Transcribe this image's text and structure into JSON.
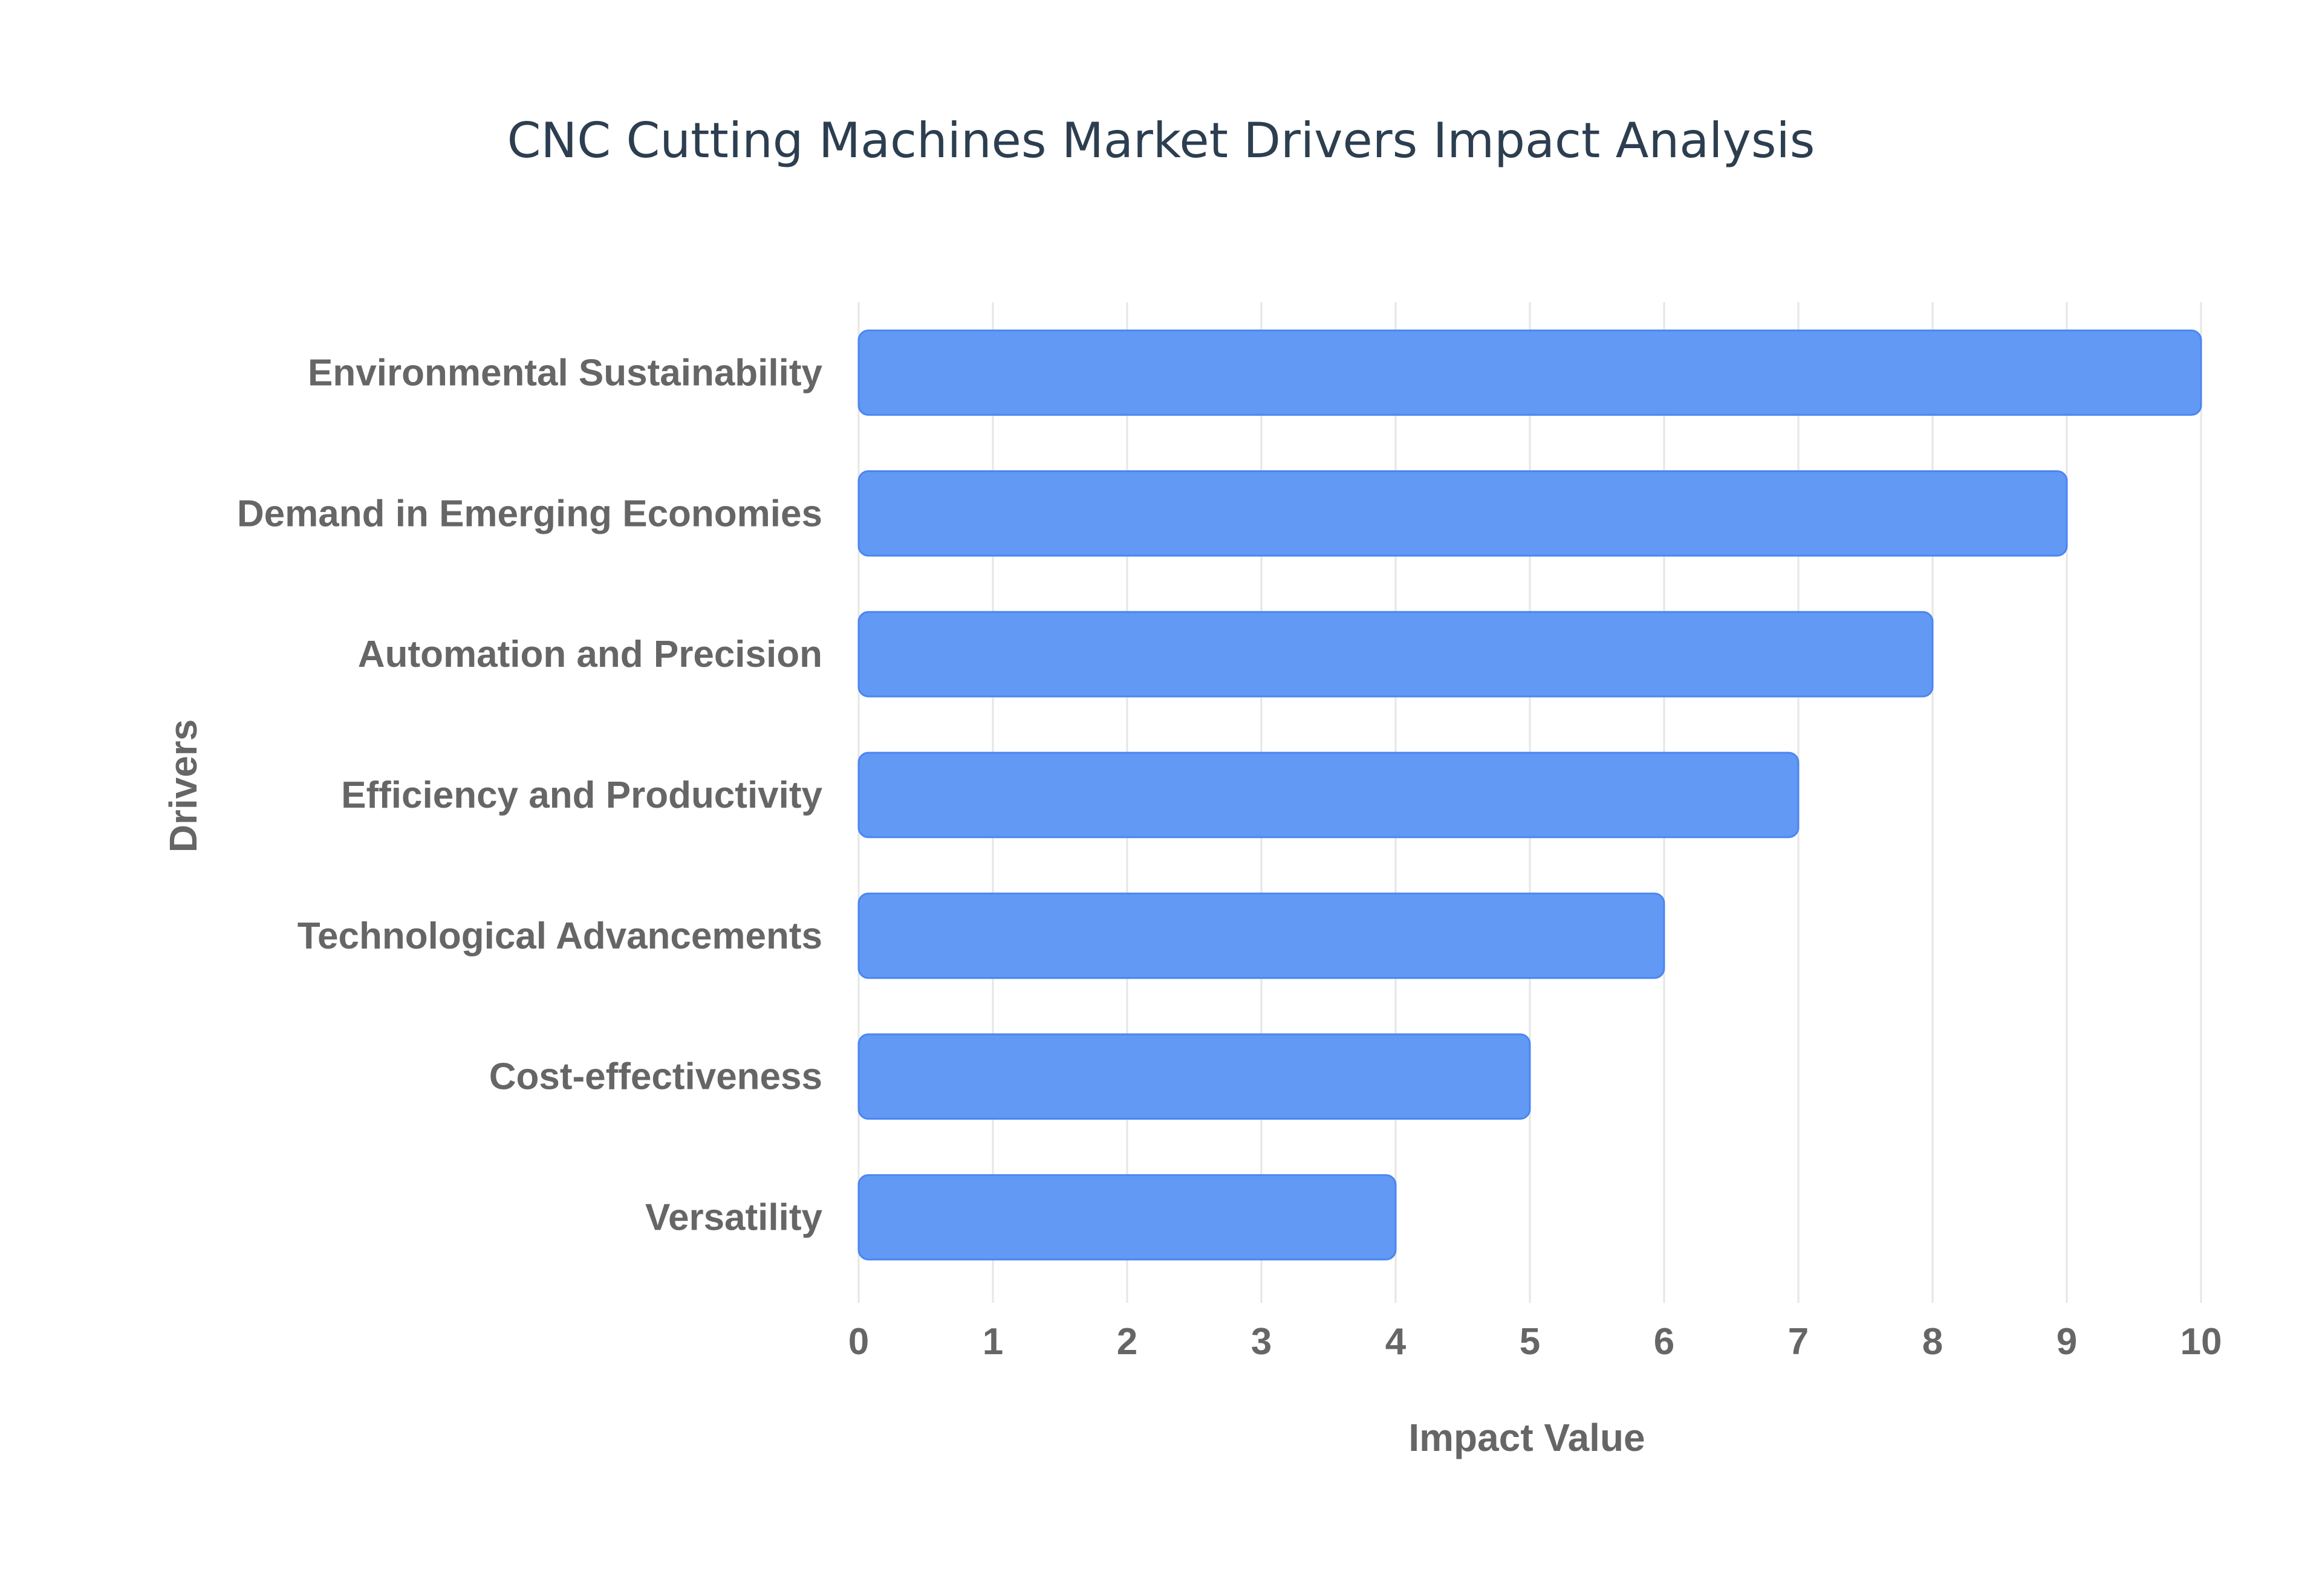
{
  "chart_data": {
    "type": "bar",
    "orientation": "horizontal",
    "title": "CNC Cutting Machines Market Drivers Impact Analysis",
    "xlabel": "Impact Value",
    "ylabel": "Drivers",
    "categories": [
      "Environmental Sustainability",
      "Demand in Emerging Economies",
      "Automation and Precision",
      "Efficiency and Productivity",
      "Technological Advancements",
      "Cost-effectiveness",
      "Versatility"
    ],
    "values": [
      10,
      9,
      8,
      7,
      6,
      5,
      4
    ],
    "xlim": [
      0,
      10
    ],
    "x_ticks": [
      "0",
      "1",
      "2",
      "3",
      "4",
      "5",
      "6",
      "7",
      "8",
      "9",
      "10"
    ],
    "grid": true,
    "bar_color": "#6199f5",
    "bar_border_color": "#4c86f0"
  }
}
